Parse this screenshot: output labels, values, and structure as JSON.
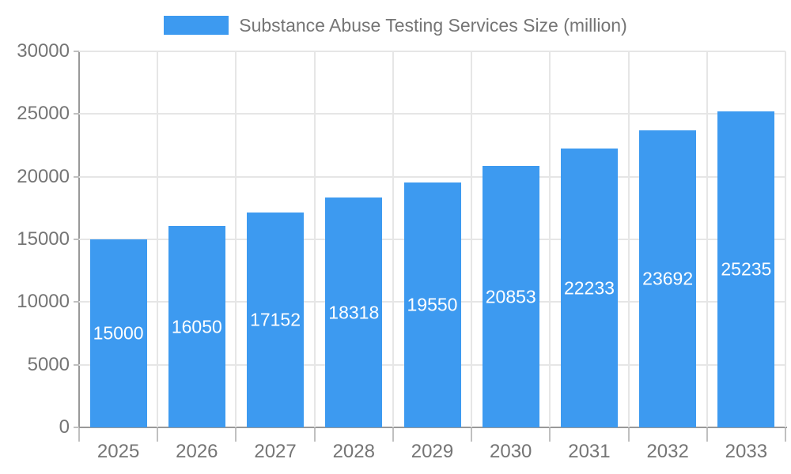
{
  "legend": {
    "series_label": "Substance Abuse Testing Services Size (million)"
  },
  "chart_data": {
    "type": "bar",
    "title": "Substance Abuse Testing Services Size (million)",
    "categories": [
      "2025",
      "2026",
      "2027",
      "2028",
      "2029",
      "2030",
      "2031",
      "2032",
      "2033"
    ],
    "values": [
      15000,
      16050,
      17152,
      18318,
      19550,
      20853,
      22233,
      23692,
      25235
    ],
    "series": [
      {
        "name": "Substance Abuse Testing Services Size (million)",
        "values": [
          15000,
          16050,
          17152,
          18318,
          19550,
          20853,
          22233,
          23692,
          25235
        ]
      }
    ],
    "xlabel": "",
    "ylabel": "",
    "ylim": [
      0,
      30000
    ],
    "yticks": [
      0,
      5000,
      10000,
      15000,
      20000,
      25000,
      30000
    ],
    "grid": true,
    "legend_position": "top",
    "value_labels": "inside-center",
    "colors": {
      "bar": "#3d9af0",
      "axis": "#999999",
      "gridline": "#e6e6e6",
      "tick": "#c0c0c0",
      "label_text": "#757575",
      "value_label_text": "#ffffff",
      "background": "#ffffff"
    }
  }
}
